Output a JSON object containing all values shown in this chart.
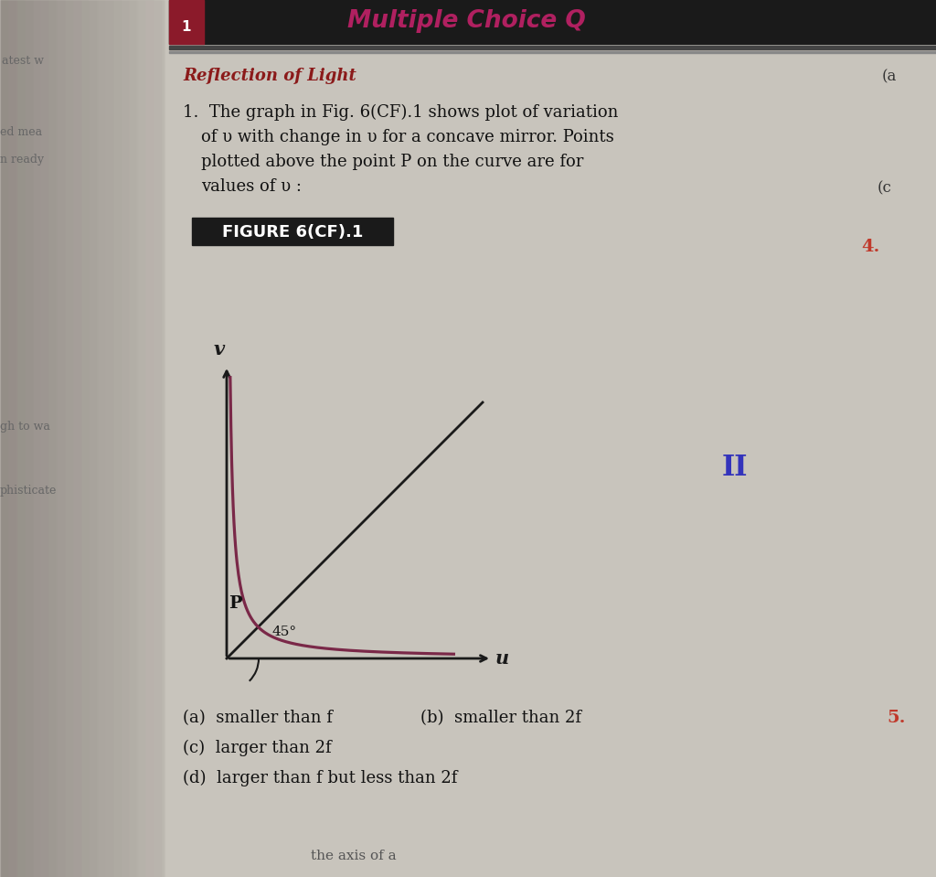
{
  "bg_color": "#c8c4bc",
  "fig_width": 10.24,
  "fig_height": 9.59,
  "header_bg": "#1a1a1a",
  "header_fg": "#b02060",
  "section_label_color": "#8B1a1a",
  "figure_label": "FIGURE 6(CF).1",
  "figure_label_bg": "#1a1a1a",
  "figure_label_fg": "#ffffff",
  "curve_color": "#7a2848",
  "line_color": "#1a1a1a",
  "axis_color": "#1a1a1a",
  "angle_label": "45°",
  "point_label": "P",
  "x_axis_label": "u",
  "y_axis_label": "v",
  "options_color": "#111111",
  "right_col_color": "#333333",
  "num_color": "#c0392b",
  "blue_color": "#3333bb"
}
